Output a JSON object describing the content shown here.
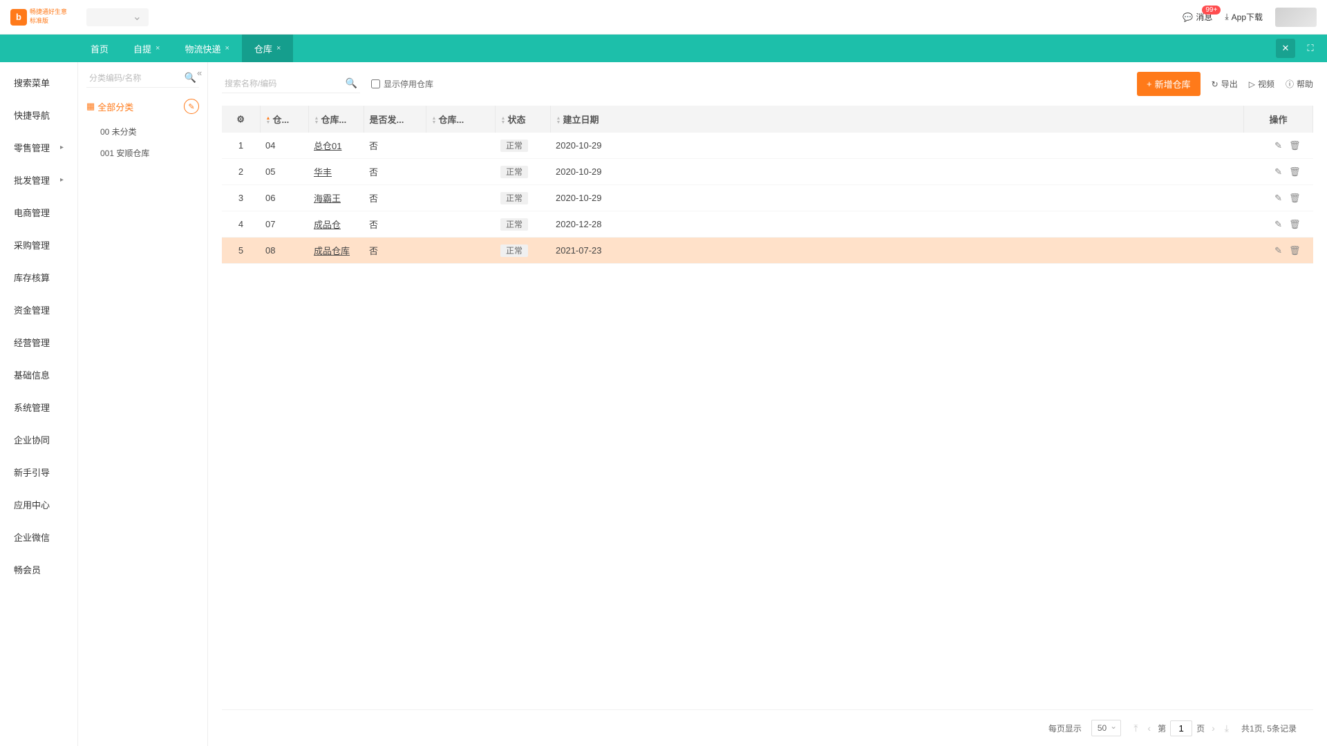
{
  "colors": {
    "primary": "#1dbfaa",
    "accent": "#ff7a1a",
    "badge": "#ff4d4f",
    "highlight_row": "#ffe1c9"
  },
  "logo": {
    "brand_top": "畅捷通好生意",
    "brand_sub": "标准版"
  },
  "header": {
    "message_label": "消息",
    "message_badge": "99+",
    "download_label": "App下载"
  },
  "tabs": {
    "items": [
      {
        "label": "首页",
        "closable": false,
        "active": false
      },
      {
        "label": "自提",
        "closable": true,
        "active": false
      },
      {
        "label": "物流快递",
        "closable": true,
        "active": false
      },
      {
        "label": "仓库",
        "closable": true,
        "active": true
      }
    ]
  },
  "sidebar": {
    "items": [
      {
        "label": "搜索菜单",
        "expandable": false
      },
      {
        "label": "快捷导航",
        "expandable": false
      },
      {
        "label": "零售管理",
        "expandable": true
      },
      {
        "label": "批发管理",
        "expandable": true
      },
      {
        "label": "电商管理",
        "expandable": false
      },
      {
        "label": "采购管理",
        "expandable": false
      },
      {
        "label": "库存核算",
        "expandable": false
      },
      {
        "label": "资金管理",
        "expandable": false
      },
      {
        "label": "经营管理",
        "expandable": false
      },
      {
        "label": "基础信息",
        "expandable": false
      },
      {
        "label": "系统管理",
        "expandable": false
      },
      {
        "label": "企业协同",
        "expandable": false
      },
      {
        "label": "新手引导",
        "expandable": false
      },
      {
        "label": "应用中心",
        "expandable": false
      },
      {
        "label": "企业微信",
        "expandable": false
      },
      {
        "label": "畅会员",
        "expandable": false
      }
    ]
  },
  "category": {
    "search_placeholder": "分类编码/名称",
    "all_label": "全部分类",
    "items": [
      {
        "label": "00 未分类"
      },
      {
        "label": "001 安顺仓库"
      }
    ]
  },
  "toolbar": {
    "search_placeholder": "搜索名称/编码",
    "show_disabled_label": "显示停用仓库",
    "add_button": "新增仓库",
    "export_label": "导出",
    "video_label": "视频",
    "help_label": "帮助"
  },
  "table": {
    "columns": {
      "code": "仓...",
      "name": "仓库...",
      "is_ship": "是否发...",
      "category": "仓库...",
      "status": "状态",
      "created": "建立日期",
      "operation": "操作"
    },
    "rows": [
      {
        "idx": "1",
        "code": "04",
        "name": "总仓01",
        "ship": "否",
        "cat": "",
        "status": "正常",
        "date": "2020-10-29",
        "highlight": false
      },
      {
        "idx": "2",
        "code": "05",
        "name": "华丰",
        "ship": "否",
        "cat": "",
        "status": "正常",
        "date": "2020-10-29",
        "highlight": false
      },
      {
        "idx": "3",
        "code": "06",
        "name": "海霸王",
        "ship": "否",
        "cat": "",
        "status": "正常",
        "date": "2020-10-29",
        "highlight": false
      },
      {
        "idx": "4",
        "code": "07",
        "name": "成品仓",
        "ship": "否",
        "cat": "",
        "status": "正常",
        "date": "2020-12-28",
        "highlight": false
      },
      {
        "idx": "5",
        "code": "08",
        "name": "成品仓库",
        "ship": "否",
        "cat": "",
        "status": "正常",
        "date": "2021-07-23",
        "highlight": true
      }
    ]
  },
  "pagination": {
    "per_page_label": "每页显示",
    "per_page_value": "50",
    "page_label_prefix": "第",
    "page_value": "1",
    "page_label_suffix": "页",
    "summary": "共1页, 5条记录"
  }
}
